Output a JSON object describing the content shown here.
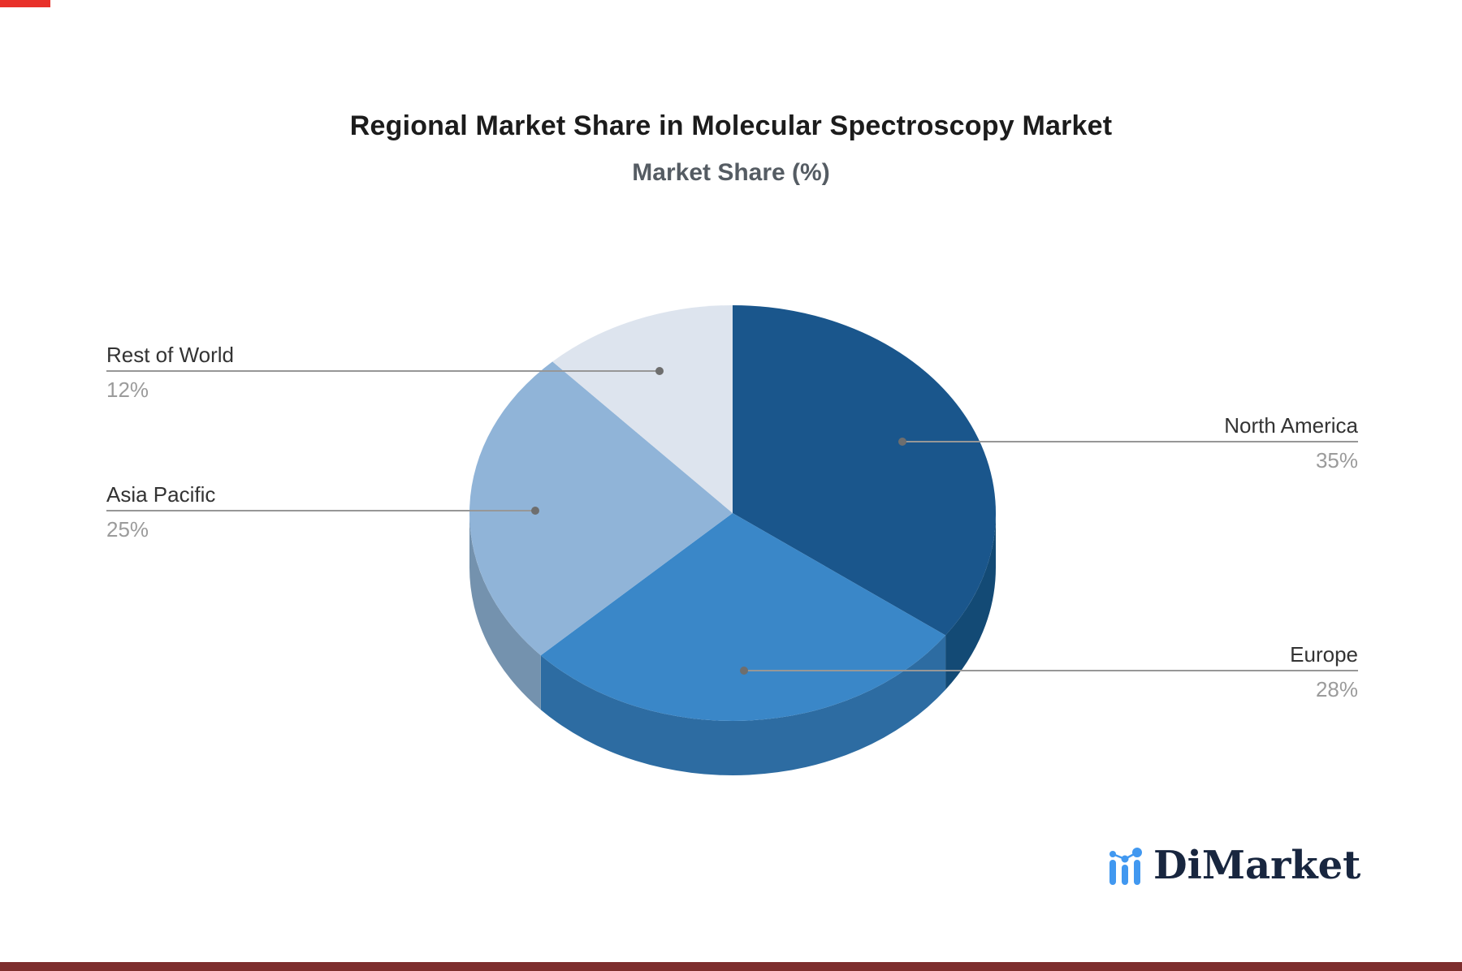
{
  "header": {
    "title": "Regional Market Share in Molecular Spectroscopy Market",
    "subtitle": "Market Share (%)"
  },
  "chart_data": {
    "type": "pie",
    "title": "Regional Market Share in Molecular Spectroscopy Market",
    "subtitle": "Market Share (%)",
    "unit": "%",
    "effect": "3d",
    "start_angle_deg": 0,
    "direction": "clockwise",
    "legend_position": "callout-labels",
    "categories": [
      "North America",
      "Europe",
      "Asia Pacific",
      "Rest of World"
    ],
    "values": [
      35,
      28,
      25,
      12
    ],
    "slices": [
      {
        "label": "North America",
        "value": 35,
        "display": "35%",
        "color": "#1a568c",
        "side_color": "#134a75",
        "label_side": "right"
      },
      {
        "label": "Europe",
        "value": 28,
        "display": "28%",
        "color": "#3a87c8",
        "side_color": "#2d6ca2",
        "label_side": "right"
      },
      {
        "label": "Asia Pacific",
        "value": 25,
        "display": "25%",
        "color": "#90b4d8",
        "side_color": "#7492ae",
        "label_side": "left"
      },
      {
        "label": "Rest of World",
        "value": 12,
        "display": "12%",
        "color": "#dde4ee",
        "side_color": "#b2bcca",
        "label_side": "left"
      }
    ]
  },
  "branding": {
    "logo_text": "DiMarket",
    "logo_icon": "bar-chart-trend-icon",
    "logo_text_color": "#18263f",
    "logo_icon_color": "#4198f0"
  },
  "colors": {
    "background": "#ffffff",
    "title_text": "#1c1c1c",
    "subtitle_text": "#555c63",
    "label_text": "#333333",
    "value_text": "#9b9b9b",
    "callout_line": "#979797",
    "callout_dot": "#6e6e6e",
    "top_accent": "#e8312a",
    "bottom_bar": "#7d2e2e"
  }
}
